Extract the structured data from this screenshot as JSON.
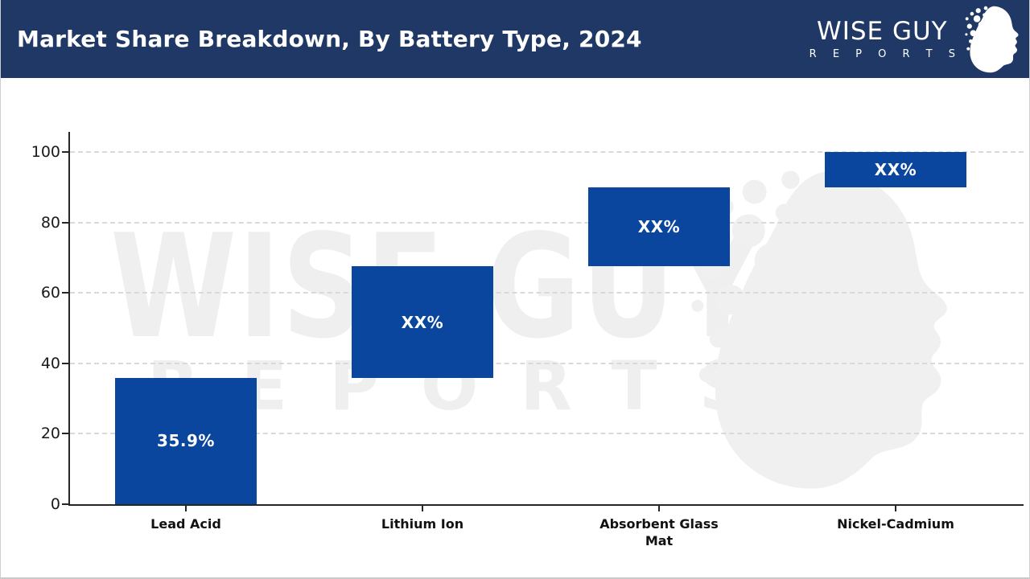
{
  "header": {
    "title": "Market Share Breakdown, By Battery Type, 2024",
    "logo": {
      "line1": "WISE GUY",
      "line2": "R E P O R T S"
    }
  },
  "watermark": {
    "line1": "WISE GUY",
    "line2": "REPORTS"
  },
  "colors": {
    "header_bg": "#1f3865",
    "bar": "#0a469e",
    "grid": "#d9d9d9",
    "axis": "#262626",
    "bar_label": "#ffffff"
  },
  "chart_data": {
    "type": "bar",
    "subtype": "stacked-waterfall",
    "title": "Market Share Breakdown, By Battery Type, 2024",
    "xlabel": "",
    "ylabel": "",
    "categories": [
      "Lead Acid",
      "Lithium Ion",
      "Absorbent Glass Mat",
      "Nickel-Cadmium"
    ],
    "category_label_lines": [
      [
        "Lead Acid"
      ],
      [
        "Lithium Ion"
      ],
      [
        "Absorbent Glass",
        "Mat"
      ],
      [
        "Nickel-Cadmium"
      ]
    ],
    "segments": [
      {
        "category": "Lead Acid",
        "start": 0,
        "end": 35.9,
        "label": "35.9%"
      },
      {
        "category": "Lithium Ion",
        "start": 35.9,
        "end": 67.5,
        "label": "XX%"
      },
      {
        "category": "Absorbent Glass Mat",
        "start": 67.5,
        "end": 90.0,
        "label": "XX%"
      },
      {
        "category": "Nickel-Cadmium",
        "start": 90.0,
        "end": 100.0,
        "label": "XX%"
      }
    ],
    "ylim": [
      0,
      100
    ],
    "yticks": [
      0,
      20,
      40,
      60,
      80,
      100
    ],
    "grid": "horizontal-dashed",
    "legend": null
  }
}
